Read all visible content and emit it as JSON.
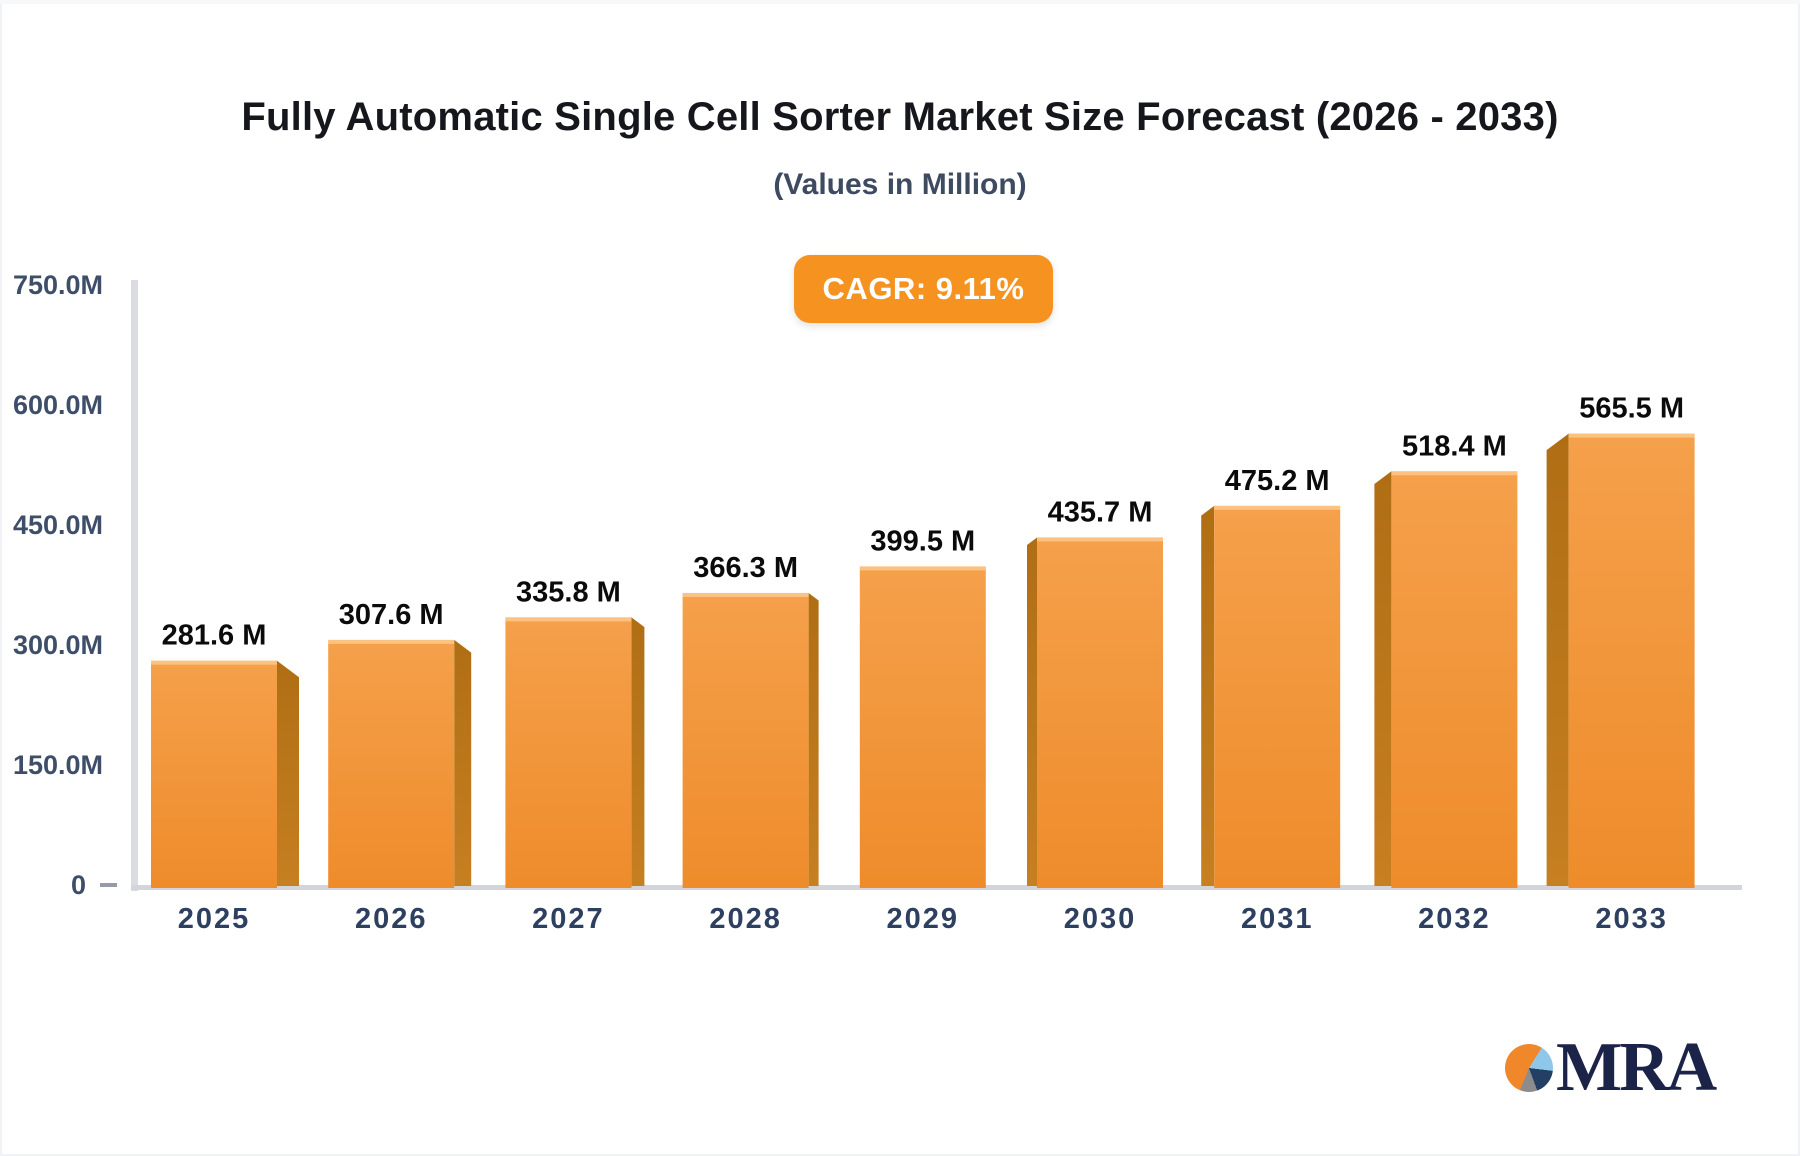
{
  "header": {
    "title": "Fully Automatic Single Cell Sorter Market Size Forecast (2026 - 2033)",
    "subtitle": "(Values in Million)"
  },
  "badge": {
    "label": "CAGR: 9.11%",
    "color": "#F6921F"
  },
  "chart_data": {
    "type": "bar",
    "title": "Fully Automatic Single Cell Sorter Market Size Forecast (2026 - 2033)",
    "subtitle": "(Values in Million)",
    "categories": [
      "2025",
      "2026",
      "2027",
      "2028",
      "2029",
      "2030",
      "2031",
      "2032",
      "2033"
    ],
    "values": [
      281.6,
      307.6,
      335.8,
      366.3,
      399.5,
      435.7,
      475.2,
      518.4,
      565.5
    ],
    "value_labels": [
      "281.6 M",
      "307.6 M",
      "335.8 M",
      "366.3 M",
      "399.5 M",
      "435.7 M",
      "475.2 M",
      "518.4 M",
      "565.5 M"
    ],
    "unit": "Million",
    "cagr": "9.11%",
    "ylim": [
      0,
      750
    ],
    "ytick_step": 150,
    "ytick_labels": [
      "750.0M",
      "600.0M",
      "450.0M",
      "300.0M",
      "150.0M",
      "0"
    ],
    "xlabel": "",
    "ylabel": "",
    "grid": false,
    "legend": false,
    "bar_color": "#F1953C",
    "bar_color_top": "#F5A04B",
    "bar_color_bottom": "#EE8C2B",
    "bar_side_color": "#BC7419",
    "axis_color": "#DBDCE1",
    "tick_label_color": "#3E4E6A",
    "category_label_color": "#2E4060",
    "value_label_color": "#0B0B0C"
  },
  "logo": {
    "text": "MRA",
    "text_color": "#1B2348",
    "pie_orange": "#F0882B",
    "pie_light_blue": "#8FC7E8",
    "pie_navy": "#233F63",
    "pie_gray": "#8C8C8C"
  }
}
